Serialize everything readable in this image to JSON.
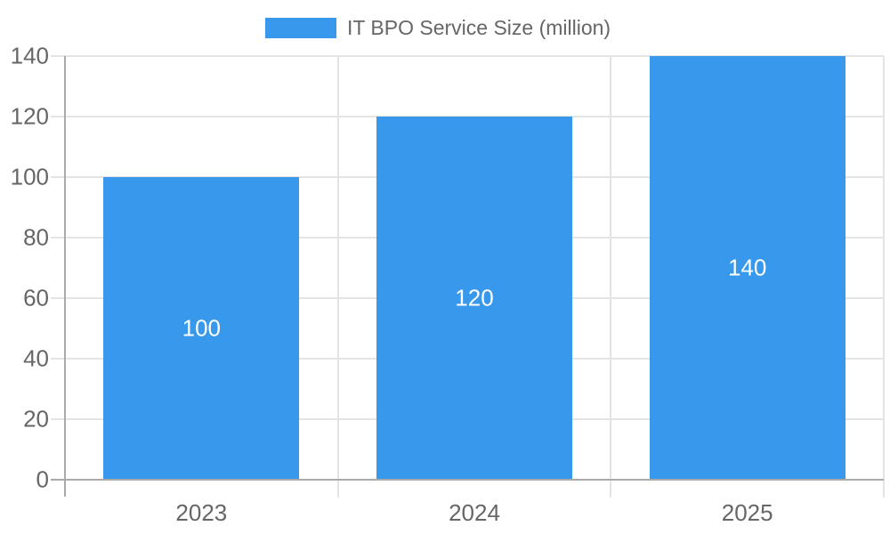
{
  "legend": {
    "label": "IT BPO Service Size (million)",
    "swatch_color": "#3899ec"
  },
  "chart_data": {
    "type": "bar",
    "title": "IT BPO Service Size (million)",
    "series": [
      {
        "name": "IT BPO Service Size (million)",
        "values": [
          100,
          120,
          140
        ]
      }
    ],
    "categories": [
      "2023",
      "2024",
      "2025"
    ],
    "bar_labels": [
      "100",
      "120",
      "140"
    ],
    "ylabel": "",
    "xlabel": "",
    "ylim": [
      0,
      140
    ],
    "y_ticks": [
      0,
      20,
      40,
      60,
      80,
      100,
      120,
      140
    ],
    "grid": "on",
    "legend_position": "top-center",
    "colors": {
      "bar": "#3899ec",
      "bar_label_text": "#ffffff",
      "axis_text": "#666666",
      "axis_line": "#aaaaaa",
      "gridline": "#e4e4e4",
      "background": "#ffffff"
    }
  }
}
